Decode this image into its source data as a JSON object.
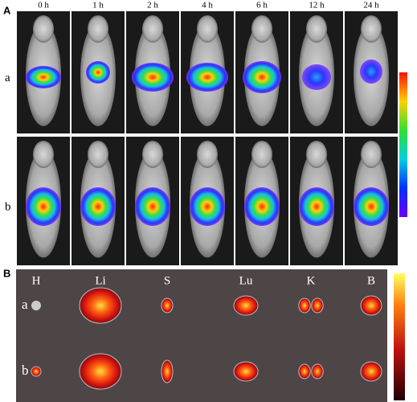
{
  "panel_a": {
    "label": "A",
    "time_labels": [
      "0 h",
      "1 h",
      "2 h",
      "4 h",
      "6 h",
      "12 h",
      "24 h"
    ],
    "row_labels": [
      "a",
      "b"
    ]
  },
  "panel_b": {
    "label": "B",
    "organ_labels": [
      "H",
      "Li",
      "S",
      "Lu",
      "K",
      "B"
    ],
    "row_labels": [
      "a",
      "b"
    ]
  }
}
